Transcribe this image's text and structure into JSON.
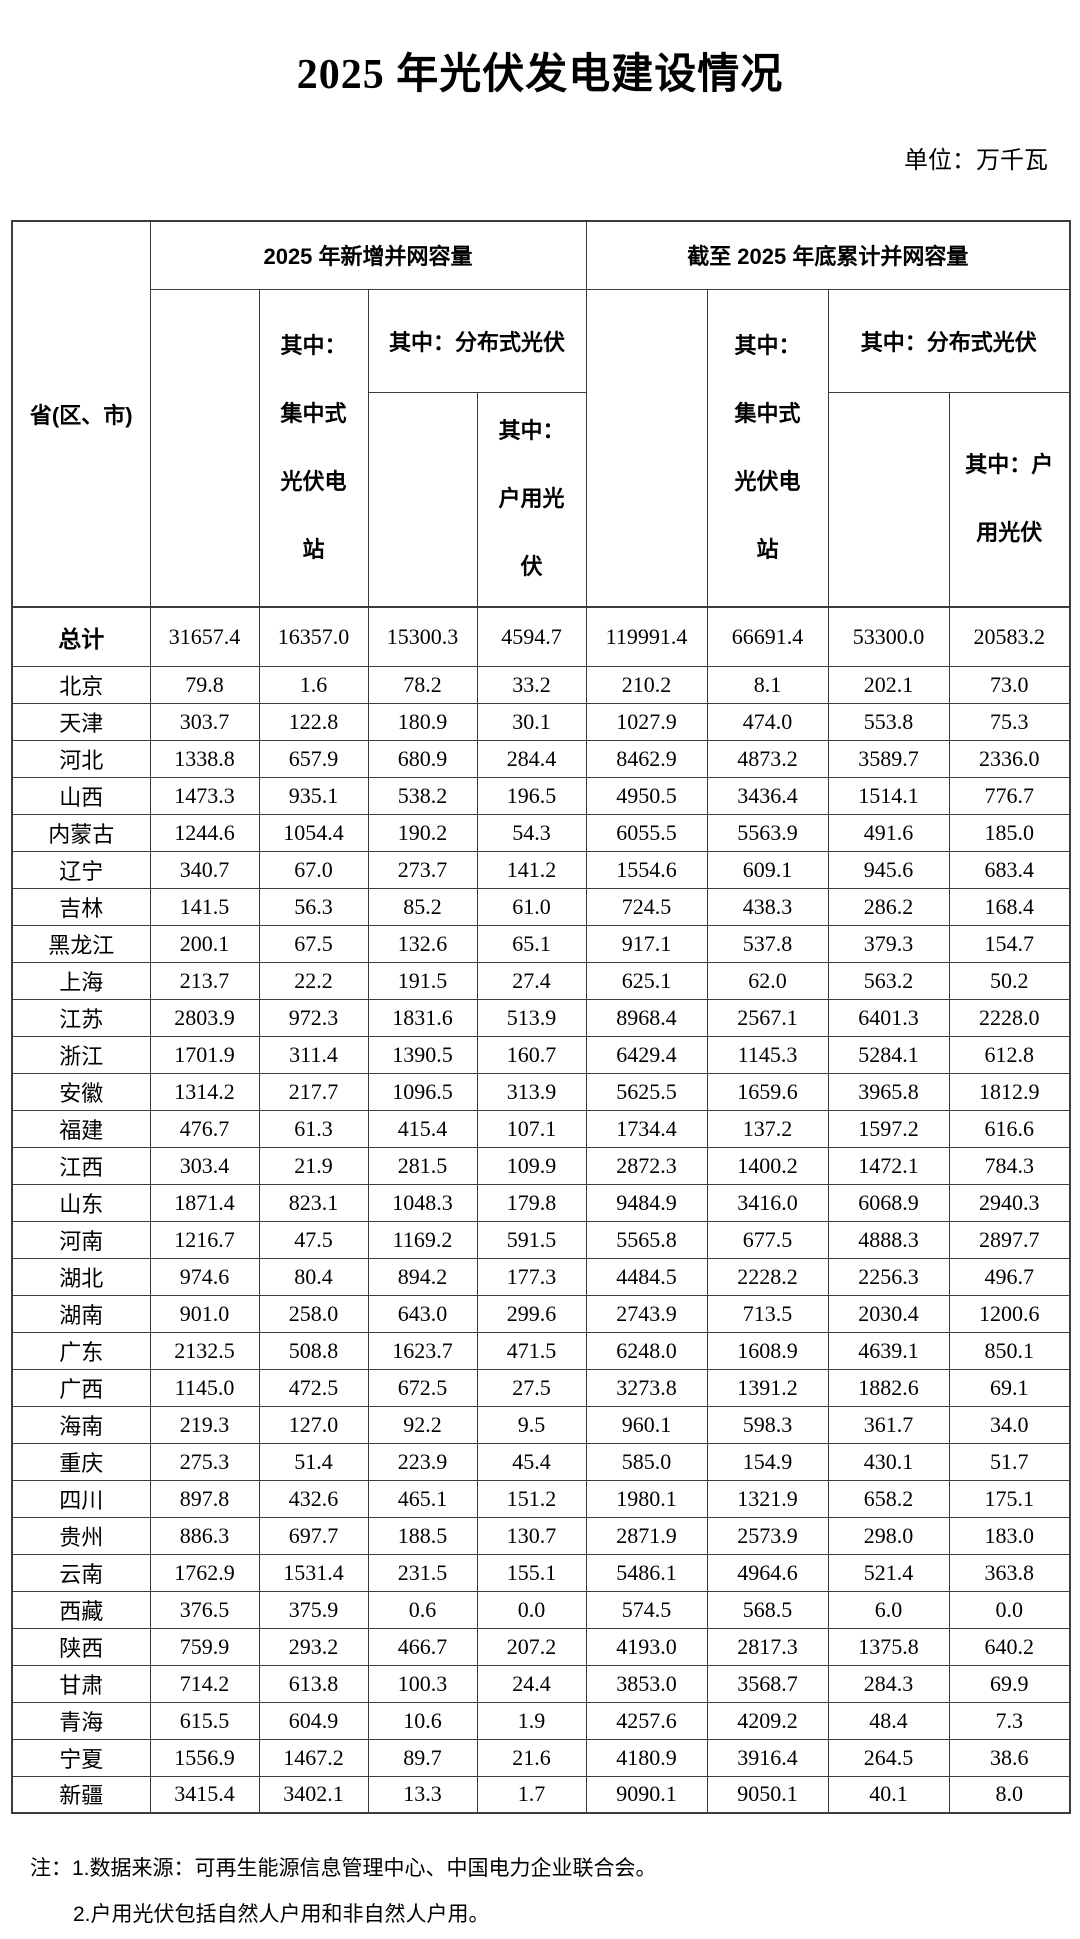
{
  "page": {
    "title": "2025 年光伏发电建设情况",
    "unit_label": "单位：万千瓦"
  },
  "table": {
    "corner_header": "省(区、市)",
    "group_new": "2025 年新增并网容量",
    "group_cumulative": "截至 2025 年底累计并网容量",
    "sub": {
      "centralized_new": "其中：\n集中式\n光伏电\n站",
      "distributed_new": "其中：分布式光伏",
      "household_new": "其中：\n户用光\n伏",
      "centralized_cum": "其中：\n集中式\n光伏电\n站",
      "distributed_cum": "其中：分布式光伏",
      "household_cum": "其中：户\n用光伏"
    },
    "total_row": {
      "label": "总计",
      "values": [
        "31657.4",
        "16357.0",
        "15300.3",
        "4594.7",
        "119991.4",
        "66691.4",
        "53300.0",
        "20583.2"
      ]
    },
    "rows": [
      {
        "province": "北京",
        "values": [
          "79.8",
          "1.6",
          "78.2",
          "33.2",
          "210.2",
          "8.1",
          "202.1",
          "73.0"
        ]
      },
      {
        "province": "天津",
        "values": [
          "303.7",
          "122.8",
          "180.9",
          "30.1",
          "1027.9",
          "474.0",
          "553.8",
          "75.3"
        ]
      },
      {
        "province": "河北",
        "values": [
          "1338.8",
          "657.9",
          "680.9",
          "284.4",
          "8462.9",
          "4873.2",
          "3589.7",
          "2336.0"
        ]
      },
      {
        "province": "山西",
        "values": [
          "1473.3",
          "935.1",
          "538.2",
          "196.5",
          "4950.5",
          "3436.4",
          "1514.1",
          "776.7"
        ]
      },
      {
        "province": "内蒙古",
        "values": [
          "1244.6",
          "1054.4",
          "190.2",
          "54.3",
          "6055.5",
          "5563.9",
          "491.6",
          "185.0"
        ]
      },
      {
        "province": "辽宁",
        "values": [
          "340.7",
          "67.0",
          "273.7",
          "141.2",
          "1554.6",
          "609.1",
          "945.6",
          "683.4"
        ]
      },
      {
        "province": "吉林",
        "values": [
          "141.5",
          "56.3",
          "85.2",
          "61.0",
          "724.5",
          "438.3",
          "286.2",
          "168.4"
        ]
      },
      {
        "province": "黑龙江",
        "values": [
          "200.1",
          "67.5",
          "132.6",
          "65.1",
          "917.1",
          "537.8",
          "379.3",
          "154.7"
        ]
      },
      {
        "province": "上海",
        "values": [
          "213.7",
          "22.2",
          "191.5",
          "27.4",
          "625.1",
          "62.0",
          "563.2",
          "50.2"
        ]
      },
      {
        "province": "江苏",
        "values": [
          "2803.9",
          "972.3",
          "1831.6",
          "513.9",
          "8968.4",
          "2567.1",
          "6401.3",
          "2228.0"
        ]
      },
      {
        "province": "浙江",
        "values": [
          "1701.9",
          "311.4",
          "1390.5",
          "160.7",
          "6429.4",
          "1145.3",
          "5284.1",
          "612.8"
        ]
      },
      {
        "province": "安徽",
        "values": [
          "1314.2",
          "217.7",
          "1096.5",
          "313.9",
          "5625.5",
          "1659.6",
          "3965.8",
          "1812.9"
        ]
      },
      {
        "province": "福建",
        "values": [
          "476.7",
          "61.3",
          "415.4",
          "107.1",
          "1734.4",
          "137.2",
          "1597.2",
          "616.6"
        ]
      },
      {
        "province": "江西",
        "values": [
          "303.4",
          "21.9",
          "281.5",
          "109.9",
          "2872.3",
          "1400.2",
          "1472.1",
          "784.3"
        ]
      },
      {
        "province": "山东",
        "values": [
          "1871.4",
          "823.1",
          "1048.3",
          "179.8",
          "9484.9",
          "3416.0",
          "6068.9",
          "2940.3"
        ]
      },
      {
        "province": "河南",
        "values": [
          "1216.7",
          "47.5",
          "1169.2",
          "591.5",
          "5565.8",
          "677.5",
          "4888.3",
          "2897.7"
        ]
      },
      {
        "province": "湖北",
        "values": [
          "974.6",
          "80.4",
          "894.2",
          "177.3",
          "4484.5",
          "2228.2",
          "2256.3",
          "496.7"
        ]
      },
      {
        "province": "湖南",
        "values": [
          "901.0",
          "258.0",
          "643.0",
          "299.6",
          "2743.9",
          "713.5",
          "2030.4",
          "1200.6"
        ]
      },
      {
        "province": "广东",
        "values": [
          "2132.5",
          "508.8",
          "1623.7",
          "471.5",
          "6248.0",
          "1608.9",
          "4639.1",
          "850.1"
        ]
      },
      {
        "province": "广西",
        "values": [
          "1145.0",
          "472.5",
          "672.5",
          "27.5",
          "3273.8",
          "1391.2",
          "1882.6",
          "69.1"
        ]
      },
      {
        "province": "海南",
        "values": [
          "219.3",
          "127.0",
          "92.2",
          "9.5",
          "960.1",
          "598.3",
          "361.7",
          "34.0"
        ]
      },
      {
        "province": "重庆",
        "values": [
          "275.3",
          "51.4",
          "223.9",
          "45.4",
          "585.0",
          "154.9",
          "430.1",
          "51.7"
        ]
      },
      {
        "province": "四川",
        "values": [
          "897.8",
          "432.6",
          "465.1",
          "151.2",
          "1980.1",
          "1321.9",
          "658.2",
          "175.1"
        ]
      },
      {
        "province": "贵州",
        "values": [
          "886.3",
          "697.7",
          "188.5",
          "130.7",
          "2871.9",
          "2573.9",
          "298.0",
          "183.0"
        ]
      },
      {
        "province": "云南",
        "values": [
          "1762.9",
          "1531.4",
          "231.5",
          "155.1",
          "5486.1",
          "4964.6",
          "521.4",
          "363.8"
        ]
      },
      {
        "province": "西藏",
        "values": [
          "376.5",
          "375.9",
          "0.6",
          "0.0",
          "574.5",
          "568.5",
          "6.0",
          "0.0"
        ]
      },
      {
        "province": "陕西",
        "values": [
          "759.9",
          "293.2",
          "466.7",
          "207.2",
          "4193.0",
          "2817.3",
          "1375.8",
          "640.2"
        ]
      },
      {
        "province": "甘肃",
        "values": [
          "714.2",
          "613.8",
          "100.3",
          "24.4",
          "3853.0",
          "3568.7",
          "284.3",
          "69.9"
        ]
      },
      {
        "province": "青海",
        "values": [
          "615.5",
          "604.9",
          "10.6",
          "1.9",
          "4257.6",
          "4209.2",
          "48.4",
          "7.3"
        ]
      },
      {
        "province": "宁夏",
        "values": [
          "1556.9",
          "1467.2",
          "89.7",
          "21.6",
          "4180.9",
          "3916.4",
          "264.5",
          "38.6"
        ]
      },
      {
        "province": "新疆",
        "values": [
          "3415.4",
          "3402.1",
          "13.3",
          "1.7",
          "9090.1",
          "9050.1",
          "40.1",
          "8.0"
        ]
      }
    ]
  },
  "notes": {
    "line1": "注：1.数据来源：可再生能源信息管理中心、中国电力企业联合会。",
    "line2": "2.户用光伏包括自然人户用和非自然人户用。"
  }
}
